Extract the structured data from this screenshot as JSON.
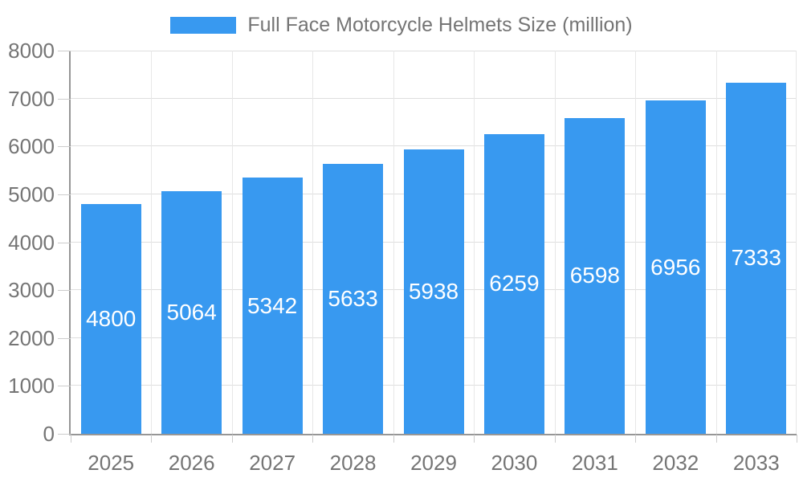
{
  "chart_data": {
    "type": "bar",
    "title": "Full Face Motorcycle Helmets Size (million)",
    "categories": [
      "2025",
      "2026",
      "2027",
      "2028",
      "2029",
      "2030",
      "2031",
      "2032",
      "2033"
    ],
    "values": [
      4800,
      5064,
      5342,
      5633,
      5938,
      6259,
      6598,
      6956,
      7333
    ],
    "ylim": [
      0,
      8000
    ],
    "ytick_step": 1000,
    "grid": true,
    "legend_position": "top",
    "bar_color": "#3899F0",
    "bar_label_color": "#FFFFFF",
    "axis_text_color": "#757575"
  }
}
